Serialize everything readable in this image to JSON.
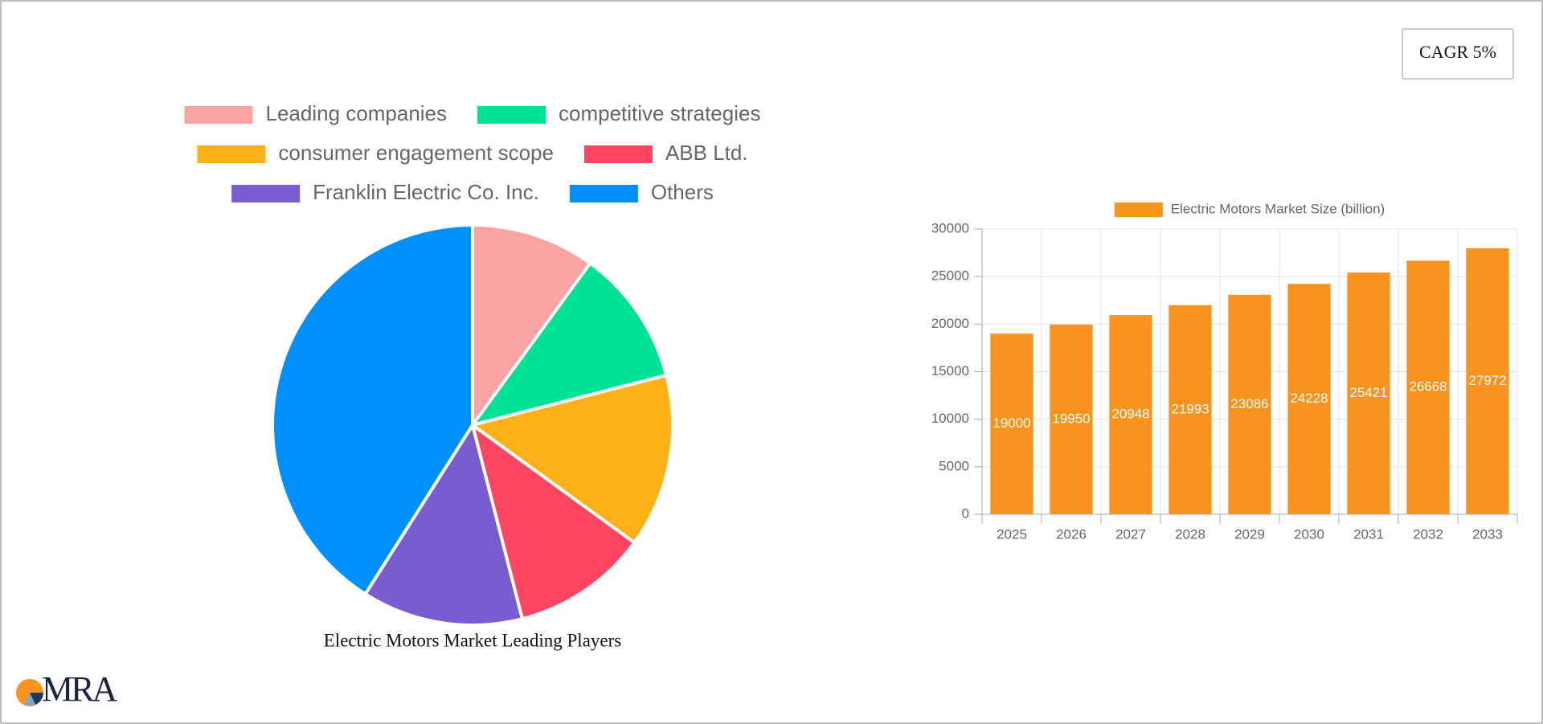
{
  "badge": "CAGR 5%",
  "logo": "MRA",
  "chart_data": [
    {
      "type": "pie",
      "title": "Electric Motors Market Leading Players",
      "categories": [
        "Leading companies",
        "competitive strategies",
        "consumer engagement scope",
        "ABB Ltd.",
        "Franklin Electric Co. Inc.",
        "Others"
      ],
      "values": [
        10,
        11,
        14,
        11,
        13,
        41
      ],
      "colors": [
        "#f9a3a4",
        "#00e396",
        "#feb019",
        "#ff4560",
        "#775dd0",
        "#008ffb"
      ],
      "legend": "top"
    },
    {
      "type": "bar",
      "categories": [
        "2025",
        "2026",
        "2027",
        "2028",
        "2029",
        "2030",
        "2031",
        "2032",
        "2033"
      ],
      "series": [
        {
          "name": "Electric Motors Market Size (billion)",
          "color": "#f7931e",
          "values": [
            19000,
            19950,
            20948,
            21993,
            23086,
            24228,
            25421,
            26668,
            27972
          ]
        }
      ],
      "ylim": [
        0,
        30000
      ],
      "yticks": [
        0,
        5000,
        10000,
        15000,
        20000,
        25000,
        30000
      ],
      "grid": true,
      "legend": "top"
    }
  ]
}
